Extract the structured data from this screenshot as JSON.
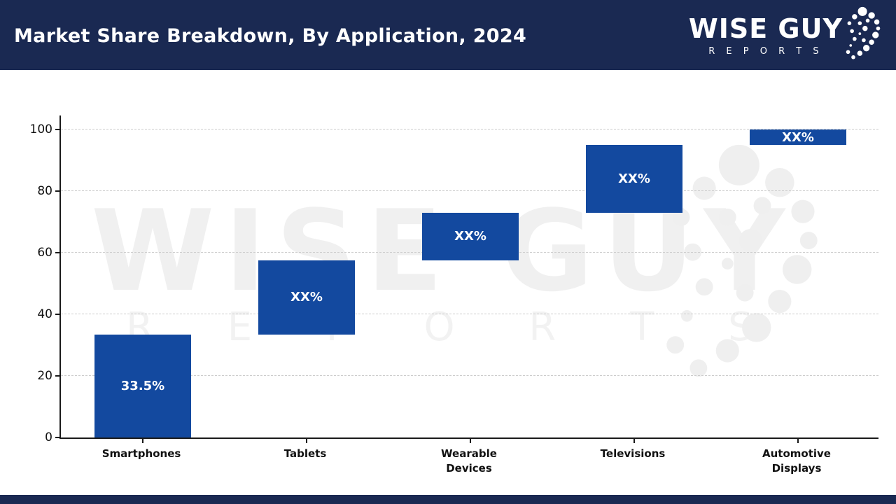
{
  "header": {
    "title": "Market Share Breakdown, By Application, 2024",
    "logo": {
      "line1": "WISE GUY",
      "line2": "R E P O R T S"
    }
  },
  "watermark": {
    "line1": "WISE GUY",
    "line2": "R E P O R T S"
  },
  "chart_data": {
    "type": "bar",
    "variant": "waterfall-floating-bars",
    "title": "Market Share Breakdown, By Application, 2024",
    "categories": [
      "Smartphones",
      "Tablets",
      "Wearable Devices",
      "Televisions",
      "Automotive Displays"
    ],
    "segments": [
      {
        "category": "Smartphones",
        "start": 0,
        "end": 33.5,
        "label": "33.5%"
      },
      {
        "category": "Tablets",
        "start": 33.5,
        "end": 57.5,
        "label": "XX%"
      },
      {
        "category": "Wearable Devices",
        "start": 57.5,
        "end": 73,
        "label": "XX%"
      },
      {
        "category": "Televisions",
        "start": 73,
        "end": 95,
        "label": "XX%"
      },
      {
        "category": "Automotive Displays",
        "start": 95,
        "end": 100,
        "label": "XX%"
      }
    ],
    "xlabel": "",
    "ylabel": "",
    "ylim": [
      0,
      100
    ],
    "yticks": [
      0,
      20,
      40,
      60,
      80,
      100
    ],
    "grid": "horizontal-dashed",
    "legend": "none",
    "colors": {
      "bar": "#13499F",
      "bar_label": "#ffffff",
      "grid": "#cccccc",
      "axis": "#1a1a1a",
      "header_bg": "#1a2952",
      "footer_bg": "#1a2952"
    }
  }
}
